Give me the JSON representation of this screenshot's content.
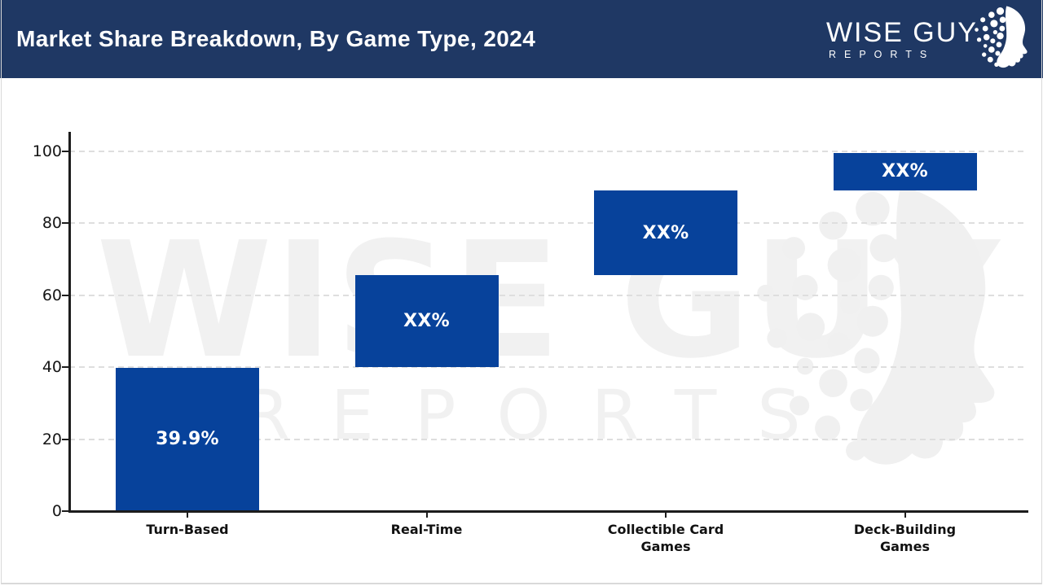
{
  "header": {
    "title": "Market Share Breakdown, By Game Type, 2024",
    "bg_color": "#1f3864",
    "logo": {
      "line1": "WISE GUY",
      "line2": "REPORTS"
    }
  },
  "watermark": {
    "line1": "WISE GUY",
    "line2": "REPORTS"
  },
  "chart_data": {
    "type": "bar",
    "variant": "waterfall",
    "title": "Market Share Breakdown, By Game Type, 2024",
    "categories": [
      "Turn-Based",
      "Real-Time",
      "Collectible Card\nGames",
      "Deck-Building\nGames"
    ],
    "segments": [
      {
        "category": "Turn-Based",
        "start": 0,
        "end": 39.9,
        "label": "39.9%"
      },
      {
        "category": "Real-Time",
        "start": 40,
        "end": 65.6,
        "label": "XX%"
      },
      {
        "category": "Collectible Card Games",
        "start": 65.6,
        "end": 89.1,
        "label": "XX%"
      },
      {
        "category": "Deck-Building Games",
        "start": 89.1,
        "end": 99.6,
        "label": "XX%"
      }
    ],
    "ylim": [
      0,
      100
    ],
    "yticks": [
      0,
      20,
      40,
      60,
      80,
      100
    ],
    "xlabel": "",
    "ylabel": "",
    "grid": "horizontal-dashed",
    "legend": "none",
    "bar_color": "#07429b",
    "bar_label_color": "#ffffff",
    "axis_color": "#1c1c1c"
  }
}
